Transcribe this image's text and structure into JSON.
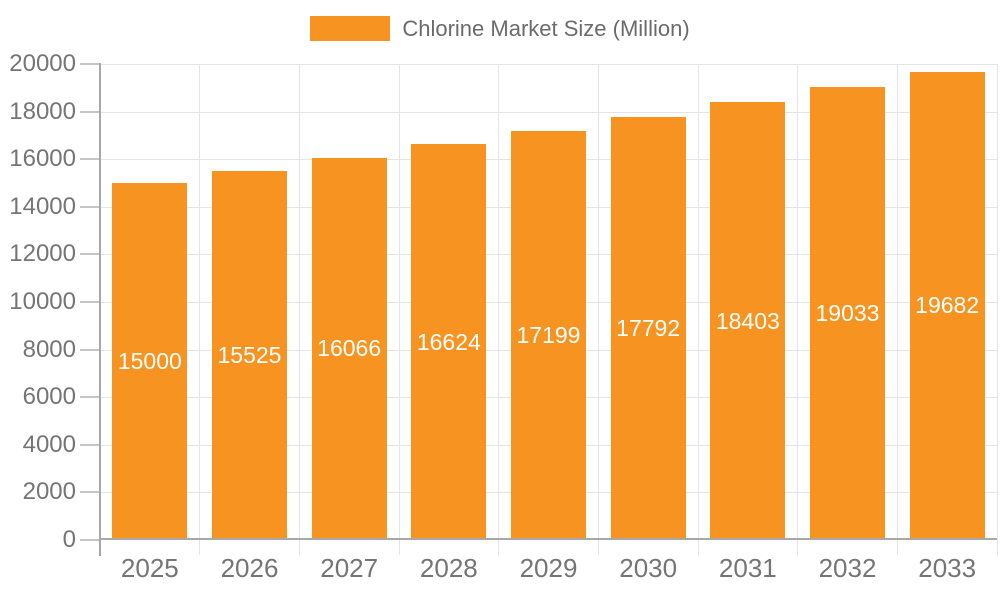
{
  "chart_data": {
    "type": "bar",
    "title": "Chlorine Market Size (Million)",
    "categories": [
      "2025",
      "2026",
      "2027",
      "2028",
      "2029",
      "2030",
      "2031",
      "2032",
      "2033"
    ],
    "values": [
      15000,
      15525,
      16066,
      16624,
      17199,
      17792,
      18403,
      19033,
      19682
    ],
    "xlabel": "",
    "ylabel": "",
    "ylim": [
      0,
      20000
    ],
    "y_ticks": [
      0,
      2000,
      4000,
      6000,
      8000,
      10000,
      12000,
      14000,
      16000,
      18000,
      20000
    ],
    "grid": "both",
    "legend_position": "top",
    "value_labels": "inside-center"
  },
  "colors": {
    "bar": "#F79421",
    "value_label": "#FFFFFF",
    "grid": "#E5E5E5",
    "axis": "#A8A8A8",
    "tick": "#C6C6C6",
    "tick_label": "#757575",
    "legend_text": "#6B6B6B",
    "background": "#FFFFFF"
  }
}
